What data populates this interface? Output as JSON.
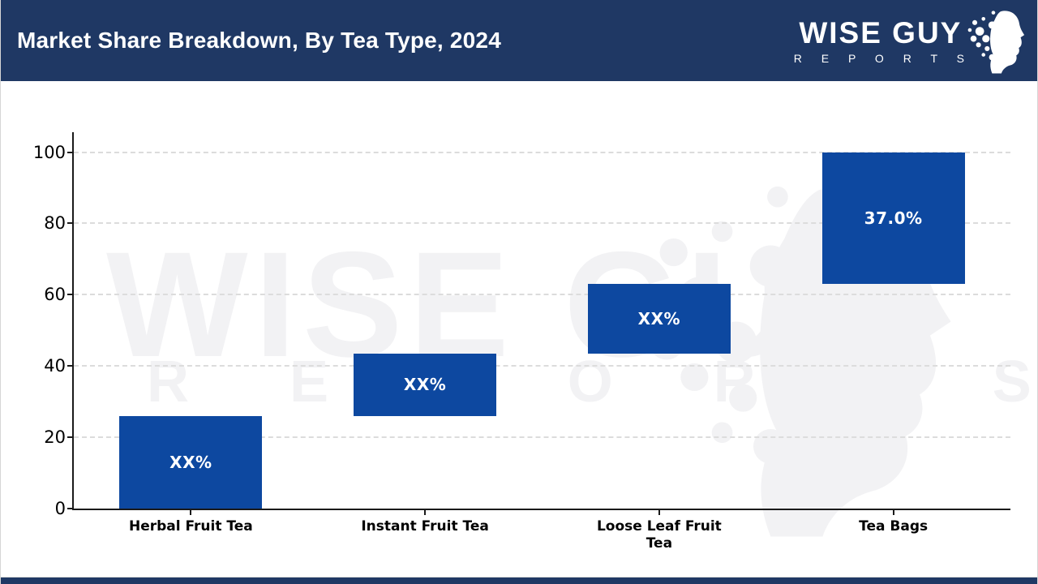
{
  "header": {
    "title": "Market Share Breakdown, By Tea Type, 2024",
    "logo": {
      "line1": "WISE GUY",
      "line2": "R E P O R T S"
    }
  },
  "watermark": {
    "line1": "WISE GUY",
    "line2": "R E P O R T S"
  },
  "colors": {
    "header_bg": "#1f3864",
    "footer_bg": "#1f3864",
    "bar": "#0d48a0",
    "bar_label": "#ffffff",
    "grid": "#dcdcdc",
    "axis": "#1a1a1a",
    "watermark": "#f2f2f4"
  },
  "chart_data": {
    "type": "bar",
    "subtype": "waterfall",
    "title": "Market Share Breakdown, By Tea Type, 2024",
    "categories": [
      "Herbal Fruit Tea",
      "Instant Fruit Tea",
      "Loose Leaf Fruit Tea",
      "Tea Bags"
    ],
    "bars": [
      {
        "category": "Herbal Fruit Tea",
        "start": 0,
        "end": 26,
        "label": "XX%"
      },
      {
        "category": "Instant Fruit Tea",
        "start": 26,
        "end": 43.5,
        "label": "XX%"
      },
      {
        "category": "Loose Leaf Fruit Tea",
        "start": 43.5,
        "end": 63,
        "label": "XX%"
      },
      {
        "category": "Tea Bags",
        "start": 63,
        "end": 100,
        "label": "37.0%"
      }
    ],
    "xlabel": "",
    "ylabel": "",
    "ylim": [
      0,
      100
    ],
    "yticks": [
      0,
      20,
      40,
      60,
      80,
      100
    ],
    "grid": "horizontal-dashed",
    "legend": "none"
  }
}
